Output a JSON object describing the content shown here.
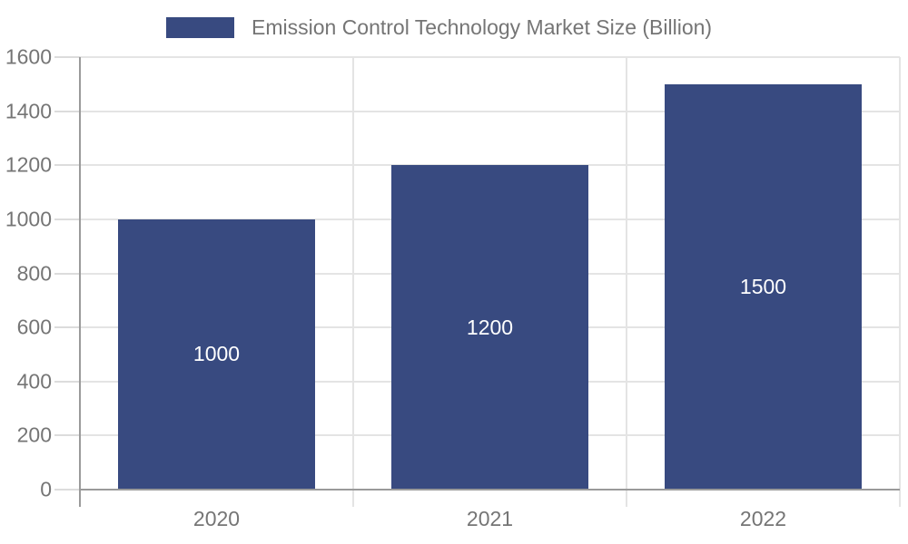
{
  "chart_data": {
    "type": "bar",
    "legend": "Emission Control Technology Market Size (Billion)",
    "categories": [
      "2020",
      "2021",
      "2022"
    ],
    "values": [
      1000,
      1200,
      1500
    ],
    "data_labels": [
      "1000",
      "1200",
      "1500"
    ],
    "ylim": [
      0,
      1600
    ],
    "ytick_step": 200,
    "ytick_labels": [
      "0",
      "200",
      "400",
      "600",
      "800",
      "1000",
      "1200",
      "1400",
      "1600"
    ],
    "grid": true,
    "legend_position": "top",
    "colors": {
      "bar": "#384A80",
      "grid": "#e4e4e4",
      "tick": "#dcdcdc",
      "axis": "#9a9a9a",
      "text": "#757575",
      "data_label": "#ffffff",
      "background": "#ffffff"
    }
  }
}
